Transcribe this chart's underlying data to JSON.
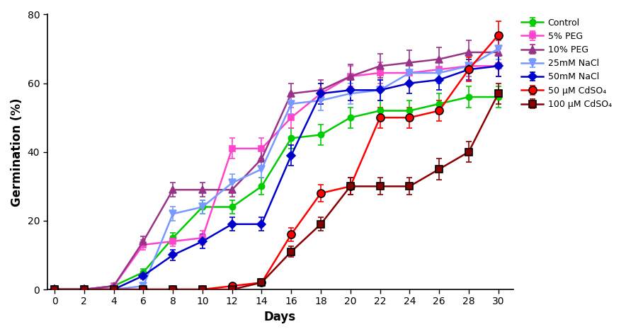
{
  "days": [
    0,
    2,
    4,
    6,
    8,
    10,
    12,
    14,
    16,
    18,
    20,
    22,
    24,
    26,
    28,
    30
  ],
  "series": {
    "Control": {
      "y": [
        0,
        0,
        1,
        5,
        15,
        24,
        24,
        30,
        44,
        45,
        50,
        52,
        52,
        54,
        56,
        56
      ],
      "yerr": [
        0,
        0,
        0.5,
        1,
        1.5,
        2,
        2,
        2.5,
        3,
        3,
        3,
        3,
        3,
        3,
        3,
        3
      ],
      "color": "#00cc00",
      "marker": "o",
      "ms": 6,
      "mec": "#00cc00",
      "mfc": "#00cc00"
    },
    "5% PEG": {
      "y": [
        0,
        0,
        1,
        13,
        14,
        15,
        41,
        41,
        50,
        57,
        62,
        63,
        63,
        64,
        65,
        65
      ],
      "yerr": [
        0,
        0,
        0.5,
        1.5,
        1.5,
        2,
        3,
        3,
        3,
        3,
        3,
        3,
        3,
        3,
        3,
        3
      ],
      "color": "#ff44cc",
      "marker": "s",
      "ms": 6,
      "mec": "#ff44cc",
      "mfc": "#ff44cc"
    },
    "10% PEG": {
      "y": [
        0,
        0,
        1,
        14,
        29,
        29,
        29,
        38,
        57,
        58,
        62,
        65,
        66,
        67,
        69,
        69
      ],
      "yerr": [
        0,
        0,
        0.5,
        1.5,
        2,
        2,
        2,
        2.5,
        3,
        3,
        3.5,
        3.5,
        3.5,
        3.5,
        3.5,
        3.5
      ],
      "color": "#993388",
      "marker": "^",
      "ms": 7,
      "mec": "#993388",
      "mfc": "#993388"
    },
    "25mM NaCl": {
      "y": [
        0,
        0,
        0,
        1,
        22,
        24,
        31,
        35,
        54,
        55,
        57,
        58,
        63,
        63,
        65,
        70
      ],
      "yerr": [
        0,
        0,
        0,
        0.5,
        2,
        2,
        2.5,
        2.5,
        3,
        3,
        3,
        3,
        3,
        3,
        3,
        3
      ],
      "color": "#7799ff",
      "marker": "v",
      "ms": 7,
      "mec": "#7799ff",
      "mfc": "#7799ff"
    },
    "50mM NaCl": {
      "y": [
        0,
        0,
        0,
        4,
        10,
        14,
        19,
        19,
        39,
        57,
        58,
        58,
        60,
        61,
        64,
        65
      ],
      "yerr": [
        0,
        0,
        0,
        1,
        1.5,
        2,
        2,
        2,
        3,
        3,
        3,
        3,
        3,
        3,
        3,
        3
      ],
      "color": "#0000cc",
      "marker": "D",
      "ms": 6,
      "mec": "#0000cc",
      "mfc": "#0000cc"
    },
    "50 μM CdSO₄": {
      "y": [
        0,
        0,
        0,
        0,
        0,
        0,
        1,
        2,
        16,
        28,
        30,
        50,
        50,
        52,
        64,
        74
      ],
      "yerr": [
        0,
        0,
        0,
        0,
        0,
        0,
        0.5,
        1,
        2,
        2.5,
        2.5,
        3,
        3,
        3,
        3.5,
        4
      ],
      "color": "#ff0000",
      "marker": "o",
      "ms": 8,
      "mec": "#000000",
      "mfc": "#ff0000"
    },
    "100 μM CdSO₄": {
      "y": [
        0,
        0,
        0,
        0,
        0,
        0,
        0,
        2,
        11,
        19,
        30,
        30,
        30,
        35,
        40,
        57
      ],
      "yerr": [
        0,
        0,
        0,
        0,
        0,
        0,
        0,
        0.5,
        1.5,
        2,
        2.5,
        2.5,
        2.5,
        3,
        3,
        3
      ],
      "color": "#8b0000",
      "marker": "s",
      "ms": 7,
      "mec": "#000000",
      "mfc": "#8b0000"
    }
  },
  "xlabel": "Days",
  "ylabel": "Germination (%)",
  "xlim": [
    -0.5,
    31
  ],
  "ylim": [
    0,
    80
  ],
  "xticks": [
    0,
    2,
    4,
    6,
    8,
    10,
    12,
    14,
    16,
    18,
    20,
    22,
    24,
    26,
    28,
    30
  ],
  "yticks": [
    0,
    20,
    40,
    60,
    80
  ],
  "background_color": "#ffffff",
  "legend_order": [
    "Control",
    "5% PEG",
    "10% PEG",
    "25mM NaCl",
    "50mM NaCl",
    "50 μM CdSO₄",
    "100 μM CdSO₄"
  ],
  "figsize": [
    8.84,
    4.72
  ],
  "dpi": 100
}
